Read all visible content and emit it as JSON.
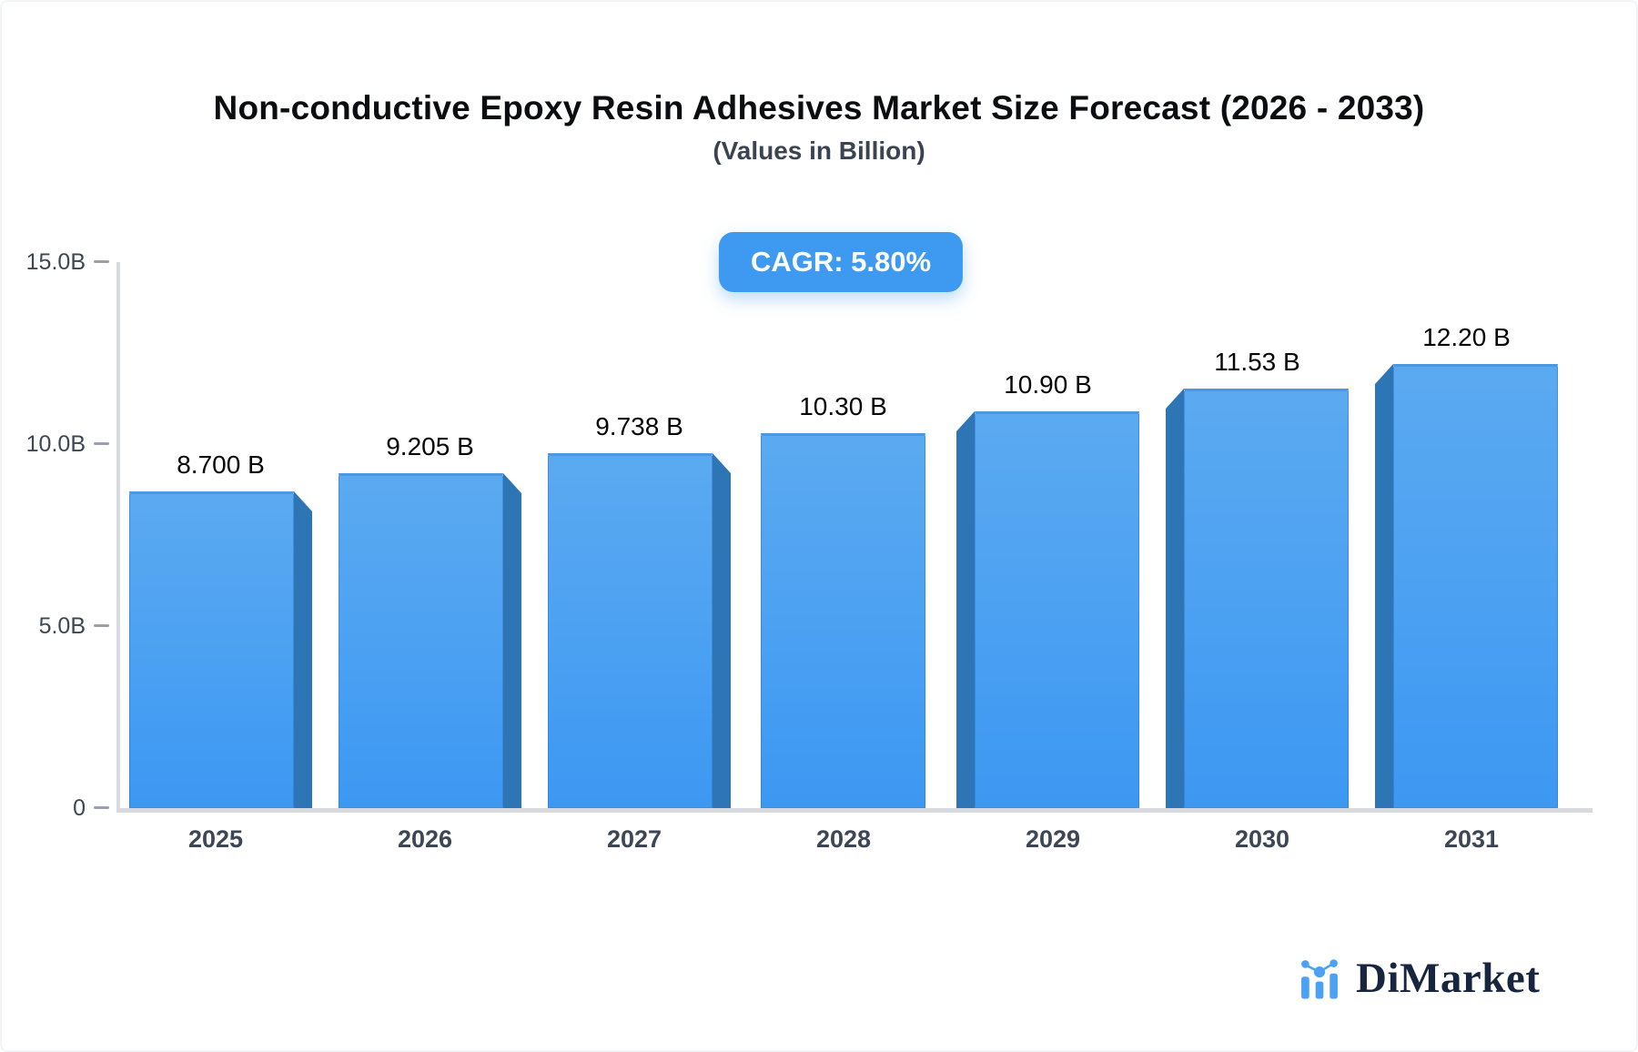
{
  "header": {
    "title": "Non-conductive Epoxy Resin Adhesives Market Size Forecast (2026 - 2033)",
    "subtitle": "(Values in Billion)"
  },
  "cagr_badge": {
    "label": "CAGR: 5.80%",
    "bg_color": "#3e9af0",
    "text_color": "#ffffff"
  },
  "chart_data": {
    "type": "bar",
    "title": "Non-conductive Epoxy Resin Adhesives Market Size Forecast (2026 - 2033)",
    "subtitle": "(Values in Billion)",
    "cagr": "5.80%",
    "categories": [
      "2025",
      "2026",
      "2027",
      "2028",
      "2029",
      "2030",
      "2031"
    ],
    "values": [
      8.7,
      9.205,
      9.738,
      10.3,
      10.9,
      11.53,
      12.2
    ],
    "value_labels": [
      "8.700 B",
      "9.205 B",
      "9.738 B",
      "10.30 B",
      "10.90 B",
      "11.53 B",
      "12.20 B"
    ],
    "unit": "Billion",
    "ylim": [
      0,
      15
    ],
    "yticks": [
      {
        "value": 15,
        "label": "15.0B"
      },
      {
        "value": 10,
        "label": "10.0B"
      },
      {
        "value": 5,
        "label": "5.0B"
      },
      {
        "value": 0,
        "label": "0"
      }
    ],
    "grid": false,
    "legend": false,
    "colors": {
      "bar_face_top": "#5baaf1",
      "bar_face_bottom": "#3d98f2",
      "bar_side": "#2e75b6",
      "bar_top_edge": "#4b97e2",
      "axis": "#d7dbe0",
      "tick": "#98a1ab",
      "axis_label": "#3c4654",
      "value_label": "#060606"
    }
  },
  "logo": {
    "text": "DiMarket",
    "icon": "dimarket-bars-icon",
    "icon_color": "#4ba2f4",
    "text_color": "#18253f"
  }
}
